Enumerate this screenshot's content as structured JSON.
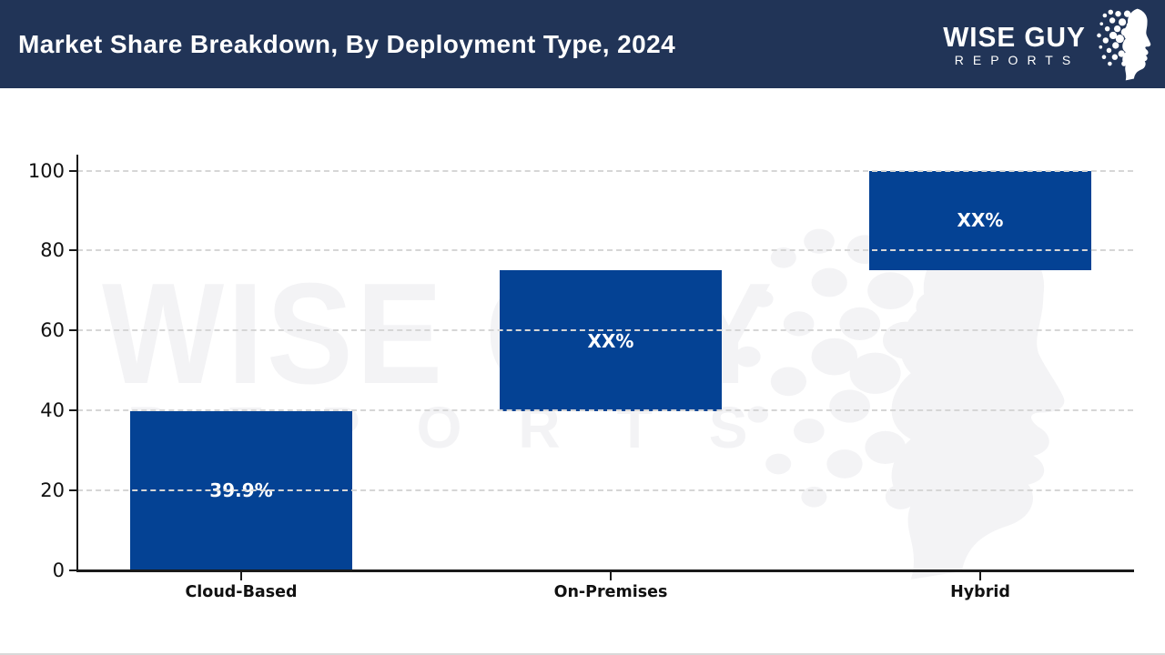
{
  "header": {
    "title": "Market Share Breakdown, By Deployment Type, 2024",
    "logo": {
      "line1": "WISE GUY",
      "line2": "REPORTS",
      "head_icon": "dotted-face-profile"
    }
  },
  "watermark": {
    "line1": "WISE GUY",
    "line2": "REPORTS",
    "head_icon": "dotted-face-profile"
  },
  "chart_data": {
    "type": "bar",
    "subtype": "stacked-waterfall",
    "title": "Market Share Breakdown, By Deployment Type, 2024",
    "categories": [
      "Cloud-Based",
      "On-Premises",
      "Hybrid"
    ],
    "series": [
      {
        "name": "Cloud-Based",
        "start": 0,
        "end": 39.9,
        "label": "39.9%"
      },
      {
        "name": "On-Premises",
        "start": 39.9,
        "end": 75,
        "label": "XX%"
      },
      {
        "name": "Hybrid",
        "start": 75,
        "end": 100,
        "label": "XX%"
      }
    ],
    "xlabel": "",
    "ylabel": "",
    "yticks": [
      0,
      20,
      40,
      60,
      80,
      100
    ],
    "ylim": [
      0,
      104
    ],
    "grid": true,
    "grid_style": "dashed",
    "legend": false,
    "bar_color": "#044294",
    "bar_label_color": "#ffffff",
    "axis_color": "#1a1a1a",
    "gridline_color": "#d6d6d6",
    "header_bg_color": "#213457",
    "title_color": "#ffffff",
    "watermark_color": "#f3f3f5"
  }
}
